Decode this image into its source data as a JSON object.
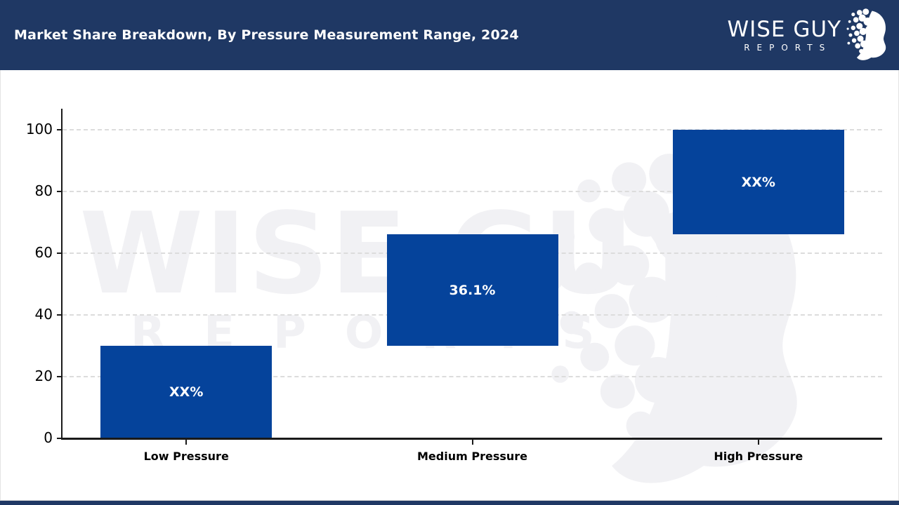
{
  "header": {
    "title": "Market Share Breakdown, By Pressure Measurement Range, 2024",
    "logo": {
      "line1": "WISE GUY",
      "line2": "REPORTS"
    }
  },
  "watermark": {
    "line1": "WISE GUY",
    "line2": "REPORTS"
  },
  "colors": {
    "header_bg": "#1F3864",
    "footer_bg": "#1F3864",
    "bar": "#05439B",
    "gridline": "#DCDCDC",
    "axis": "#1A1A1A",
    "bar_label": "#FFFFFF",
    "watermark": "#F1F1F4"
  },
  "chart_data": {
    "type": "bar",
    "subtype": "waterfall-range",
    "title": "Market Share Breakdown, By Pressure Measurement Range, 2024",
    "categories": [
      "Low Pressure",
      "Medium Pressure",
      "High Pressure"
    ],
    "segments": [
      {
        "category": "Low Pressure",
        "start": 0,
        "end": 30,
        "label": "XX%"
      },
      {
        "category": "Medium Pressure",
        "start": 30,
        "end": 66.1,
        "label": "36.1%"
      },
      {
        "category": "High Pressure",
        "start": 66.1,
        "end": 100,
        "label": "XX%"
      }
    ],
    "yticks": [
      0,
      20,
      40,
      60,
      80,
      100
    ],
    "ylim": [
      0,
      106.8
    ],
    "xlabel": "",
    "ylabel": "",
    "grid": "horizontal-dashed",
    "legend": "none"
  }
}
